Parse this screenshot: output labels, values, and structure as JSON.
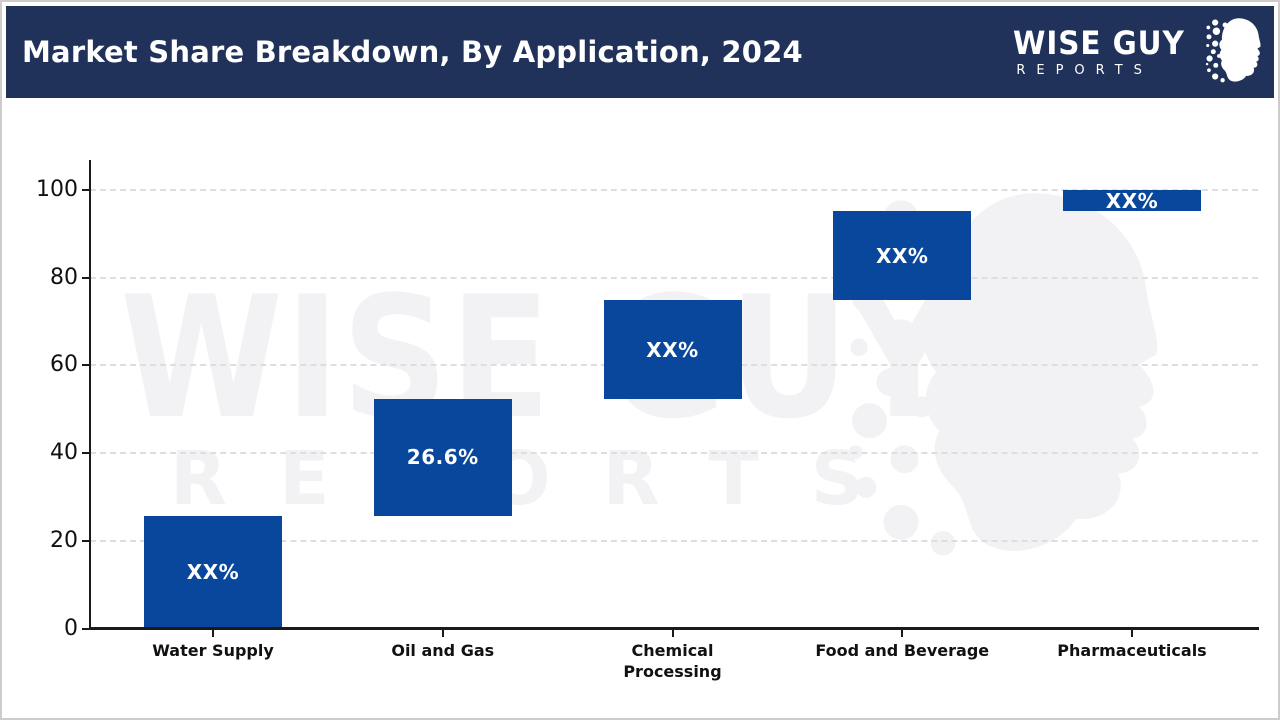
{
  "header": {
    "title": "Market Share Breakdown, By Application, 2024",
    "background_color": "#203259",
    "logo": {
      "line1": "WISE GUY",
      "line2": "REPORTS",
      "icon": "dotted-face-profile"
    }
  },
  "watermark": {
    "line1": "WISE GUY",
    "line2": "REPORTS",
    "color": "#f2f2f4"
  },
  "chart_data": {
    "type": "bar",
    "subtype": "waterfall",
    "title": "Market Share Breakdown, By Application, 2024",
    "categories": [
      "Water Supply",
      "Oil and Gas",
      "Chemical\nProcessing",
      "Food and Beverage",
      "Pharmaceuticals"
    ],
    "segments": [
      {
        "category": "Water Supply",
        "start": 0,
        "end": 25.7,
        "value": 25.7,
        "label": "XX%"
      },
      {
        "category": "Oil and Gas",
        "start": 25.7,
        "end": 52.3,
        "value": 26.6,
        "label": "26.6%"
      },
      {
        "category": "Chemical\nProcessing",
        "start": 52.3,
        "end": 74.9,
        "value": 22.6,
        "label": "XX%"
      },
      {
        "category": "Food and Beverage",
        "start": 74.9,
        "end": 95.2,
        "value": 20.3,
        "label": "XX%"
      },
      {
        "category": "Pharmaceuticals",
        "start": 95.2,
        "end": 100,
        "value": 4.8,
        "label": "XX%"
      }
    ],
    "xlabel": "",
    "ylabel": "",
    "ylim": [
      0,
      100
    ],
    "yticks": [
      0,
      20,
      40,
      60,
      80,
      100
    ],
    "grid": "horizontal-dashed",
    "legend": "none",
    "bar_color": "#09479c",
    "bar_label_color": "#ffffff",
    "axis_color": "#1a1a1a",
    "gridline_color": "#dedede"
  }
}
